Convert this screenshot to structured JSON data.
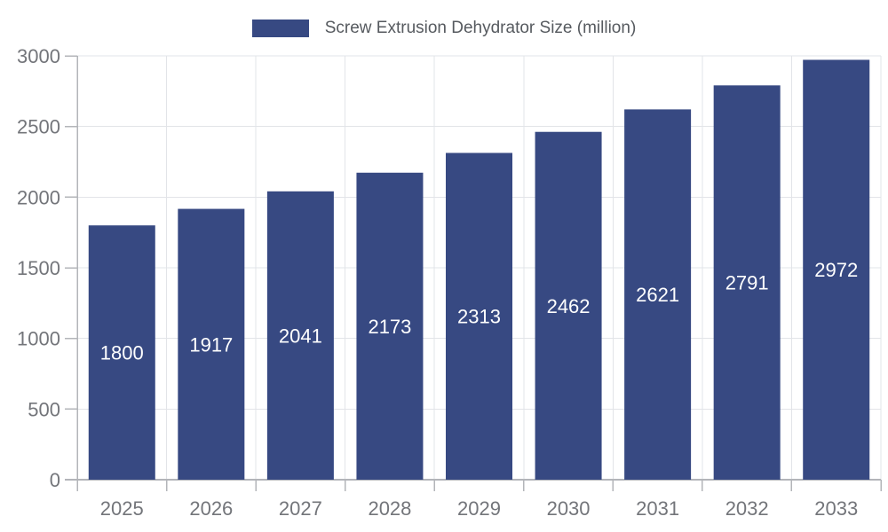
{
  "legend": {
    "label": "Screw Extrusion Dehydrator Size (million)",
    "swatch_color": "#374982"
  },
  "chart_data": {
    "type": "bar",
    "title": "",
    "categories": [
      "2025",
      "2026",
      "2027",
      "2028",
      "2029",
      "2030",
      "2031",
      "2032",
      "2033"
    ],
    "series": [
      {
        "name": "Screw Extrusion Dehydrator Size (million)",
        "values": [
          1800,
          1917,
          2041,
          2173,
          2313,
          2462,
          2621,
          2791,
          2972
        ],
        "color": "#374982"
      }
    ],
    "xlabel": "",
    "ylabel": "",
    "ylim": [
      0,
      3000
    ],
    "yticks": [
      0,
      500,
      1000,
      1500,
      2000,
      2500,
      3000
    ],
    "grid": true,
    "vertical_gridlines": true,
    "legend_position": "top-center",
    "value_labels_position": "inside-center",
    "value_label_color": "#ffffff"
  },
  "colors": {
    "bar": "#374982",
    "grid_line": "#e2e4e8",
    "axis_line": "#b3b5b9",
    "tick_label": "#73757a",
    "legend_text": "#565a5f",
    "background": "#ffffff"
  }
}
